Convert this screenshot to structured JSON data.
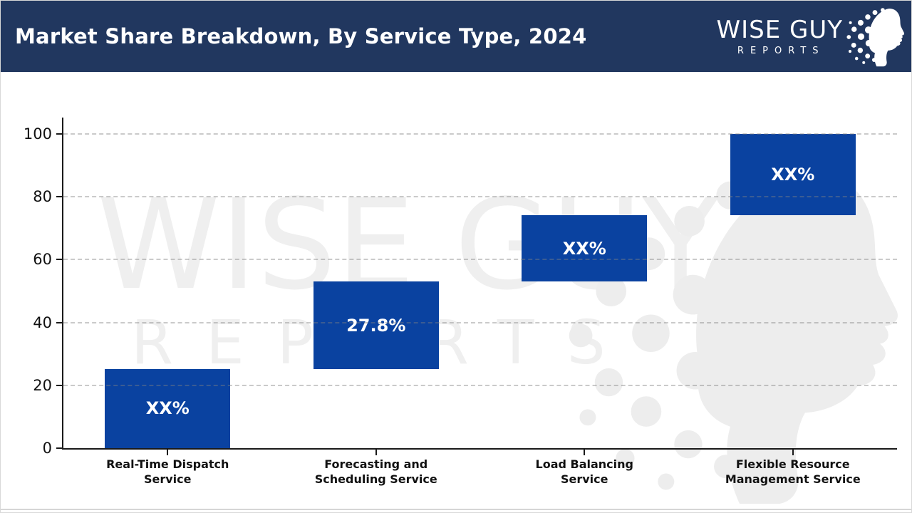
{
  "header": {
    "title": "Market Share Breakdown, By Service Type, 2024",
    "logo": {
      "wordmark": "WISE GUY",
      "subtext": "REPORTS"
    }
  },
  "watermark": {
    "text": "WISE GUY",
    "subtext": "REPORTS"
  },
  "chart_data": {
    "type": "bar",
    "subtype": "waterfall-floating-bars",
    "title": "Market Share Breakdown, By Service Type, 2024",
    "categories": [
      "Real-Time Dispatch\nService",
      "Forecasting and\nScheduling Service",
      "Load Balancing\nService",
      "Flexible Resource\nManagement Service"
    ],
    "bars": [
      {
        "category": "Real-Time Dispatch Service",
        "start": 0,
        "end": 25.2,
        "label": "XX%"
      },
      {
        "category": "Forecasting and Scheduling Service",
        "start": 25.2,
        "end": 53.0,
        "label": "27.8%"
      },
      {
        "category": "Load Balancing Service",
        "start": 53.0,
        "end": 74.1,
        "label": "XX%"
      },
      {
        "category": "Flexible Resource Management Service",
        "start": 74.1,
        "end": 100,
        "label": "XX%"
      }
    ],
    "xlabel": "",
    "ylabel": "",
    "ylim": [
      0,
      100
    ],
    "yticks": [
      0,
      20,
      40,
      60,
      80,
      100
    ],
    "grid": {
      "axis": "y",
      "style": "dashed",
      "drawn_over_bars": true
    },
    "legend": "none",
    "bar_color": "#0a42a0",
    "bar_label_color": "#ffffff"
  },
  "colors": {
    "header_bg": "#21375f",
    "bar_blue": "#0a42a0",
    "watermark_gray": "#efefef",
    "axis_black": "#1a1a1a",
    "gridline": "rgba(128,128,128,0.42)"
  }
}
